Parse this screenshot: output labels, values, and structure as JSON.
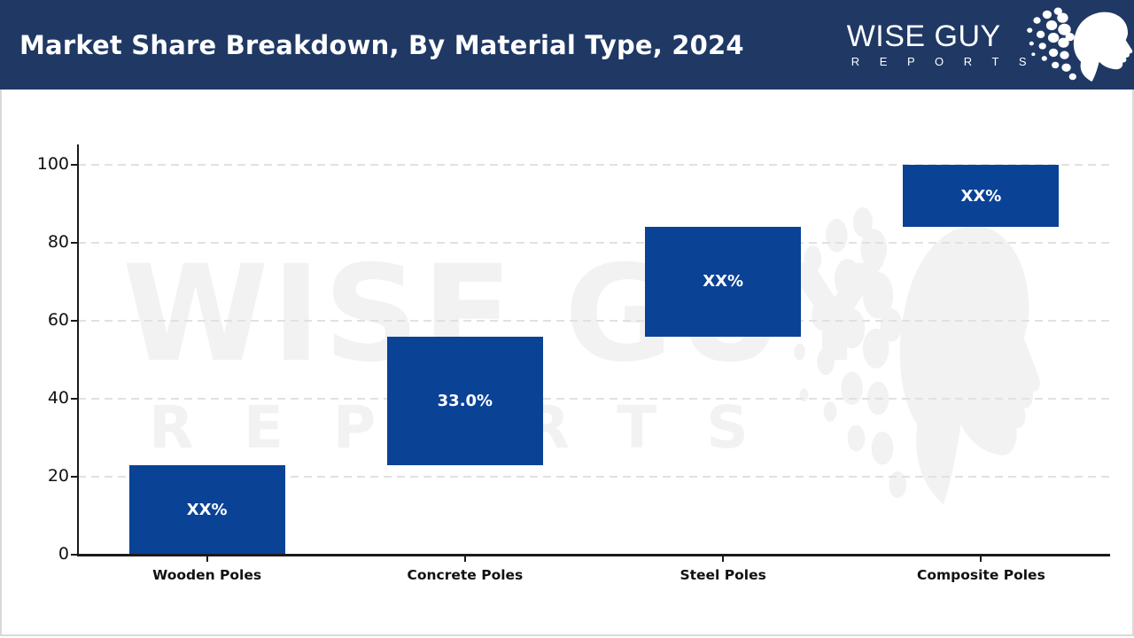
{
  "header": {
    "title": "Market Share Breakdown, By Material Type, 2024",
    "logo": {
      "line1": "WISE GUY",
      "line2": "R E P O R T S"
    }
  },
  "watermark": {
    "line1": "WISE GUY",
    "line2": "REPORTS"
  },
  "chart_data": {
    "type": "bar",
    "subtype": "waterfall",
    "title": "Market Share Breakdown, By Material Type, 2024",
    "categories": [
      "Wooden Poles",
      "Concrete Poles",
      "Steel Poles",
      "Composite Poles"
    ],
    "values": [
      23,
      33,
      28,
      16
    ],
    "segments": [
      {
        "category": "Wooden Poles",
        "start": 0,
        "end": 23,
        "label": "XX%"
      },
      {
        "category": "Concrete Poles",
        "start": 23,
        "end": 56,
        "label": "33.0%"
      },
      {
        "category": "Steel Poles",
        "start": 56,
        "end": 84,
        "label": "XX%"
      },
      {
        "category": "Composite Poles",
        "start": 84,
        "end": 100,
        "label": "XX%"
      }
    ],
    "yticks": [
      0,
      20,
      40,
      60,
      80,
      100
    ],
    "ytick_labels": [
      "0",
      "20",
      "40",
      "60",
      "80",
      "100"
    ],
    "ylim": [
      0,
      105
    ],
    "grid": "dashed-horizontal",
    "legend": "none",
    "bar_color": "#0a4296",
    "value_label_color": "#ffffff"
  },
  "colors": {
    "header_bg": "#1f3864",
    "bar_blue": "#0a4296",
    "watermark_gray": "#f2f2f2",
    "grid_gray": "#e1e1e1",
    "axis_black": "#1a1a1a",
    "frame_gray": "#d9d9d9"
  }
}
